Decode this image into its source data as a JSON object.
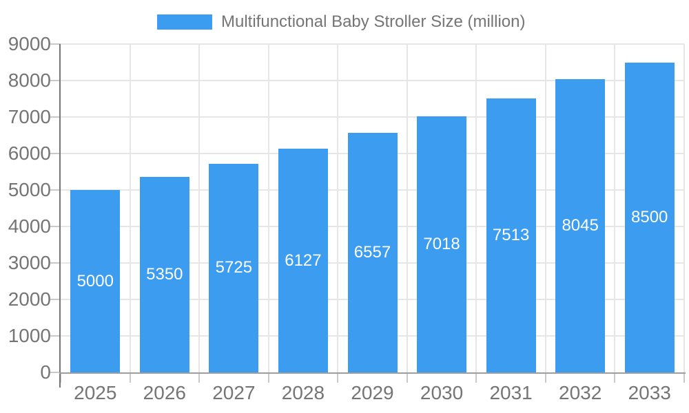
{
  "legend": {
    "label": "Multifunctional Baby Stroller Size (million)"
  },
  "colors": {
    "bar": "#3B9CF0",
    "axis_text": "#757575",
    "bar_label_text": "#ffffff",
    "grid_line": "#e6e6e6",
    "y_axis_line": "#757575",
    "x_axis_line": "#9e9e9e",
    "tick": "#c9c9c9"
  },
  "chart_data": {
    "type": "bar",
    "title": "Multifunctional Baby Stroller Size (million)",
    "series": [
      {
        "name": "Multifunctional Baby Stroller Size (million)",
        "values": [
          5000,
          5350,
          5725,
          6127,
          6557,
          7018,
          7513,
          8045,
          8500
        ]
      }
    ],
    "categories": [
      "2025",
      "2026",
      "2027",
      "2028",
      "2029",
      "2030",
      "2031",
      "2032",
      "2033"
    ],
    "y_ticks": [
      0,
      1000,
      2000,
      3000,
      4000,
      5000,
      6000,
      7000,
      8000,
      9000
    ],
    "xlabel": "",
    "ylabel": "",
    "ylim": [
      0,
      9000
    ],
    "grid": true,
    "legend_position": "top",
    "value_labels": "inside-center-white"
  }
}
